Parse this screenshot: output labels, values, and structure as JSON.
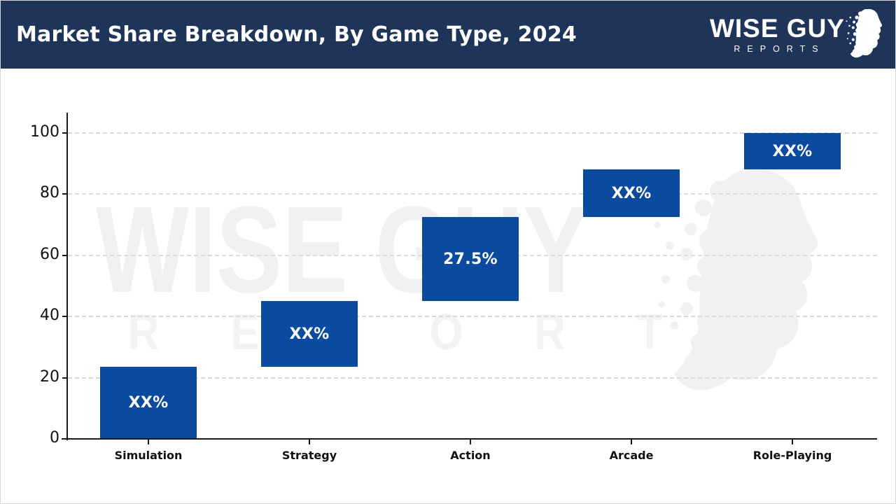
{
  "header": {
    "title": "Market Share Breakdown, By Game Type, 2024",
    "logo": {
      "line1": "WISE GUY",
      "line2": "REPORTS"
    }
  },
  "watermark": {
    "line1": "WISE GUY",
    "line2": "R E P O R T S"
  },
  "chart_data": {
    "type": "bar",
    "subtype": "waterfall",
    "title": "Market Share Breakdown, By Game Type, 2024",
    "categories": [
      "Simulation",
      "Strategy",
      "Action",
      "Arcade",
      "Role-Playing"
    ],
    "segments": [
      {
        "category": "Simulation",
        "start": 0,
        "value": 23.5,
        "display_label": "XX%"
      },
      {
        "category": "Strategy",
        "start": 23.5,
        "value": 21.5,
        "display_label": "XX%"
      },
      {
        "category": "Action",
        "start": 45,
        "value": 27.5,
        "display_label": "27.5%"
      },
      {
        "category": "Arcade",
        "start": 72.5,
        "value": 15.5,
        "display_label": "XX%"
      },
      {
        "category": "Role-Playing",
        "start": 88,
        "value": 12,
        "display_label": "XX%"
      }
    ],
    "yticks": [
      0,
      20,
      40,
      60,
      80,
      100
    ],
    "ylim": [
      0,
      107
    ],
    "xlabel": "",
    "ylabel": "",
    "grid": "horizontal dashed",
    "legend": "none"
  },
  "colors": {
    "header_bg": "#1f3459",
    "bar": "#0b4b9f",
    "bar_label": "#ffffff",
    "grid": "#dadada",
    "axis": "#1a1a1a",
    "watermark": "#f1f1f4",
    "title_text": "#ffffff"
  }
}
